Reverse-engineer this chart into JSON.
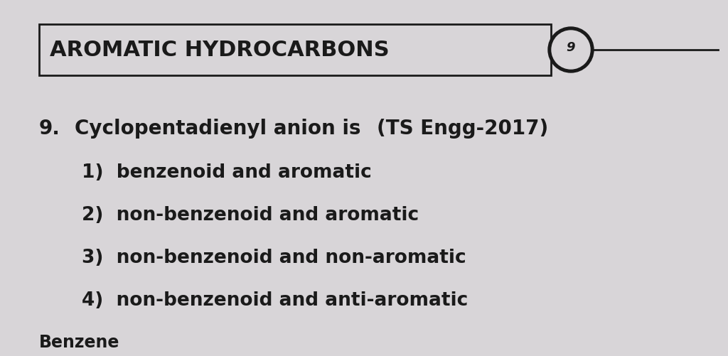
{
  "bg_color": "#d8d5d8",
  "title_text": "AROMATIC HYDROCARBONS",
  "question_num": "9.",
  "question_text": "Cyclopentadienyl anion is",
  "question_ref": "(TS Engg-2017)",
  "options": [
    "1)  benzenoid and aromatic",
    "2)  non-benzenoid and aromatic",
    "3)  non-benzenoid and non-aromatic",
    "4)  non-benzenoid and anti-aromatic"
  ],
  "title_fontsize": 22,
  "question_fontsize": 20,
  "option_fontsize": 19,
  "bottom_text": "Benzene"
}
